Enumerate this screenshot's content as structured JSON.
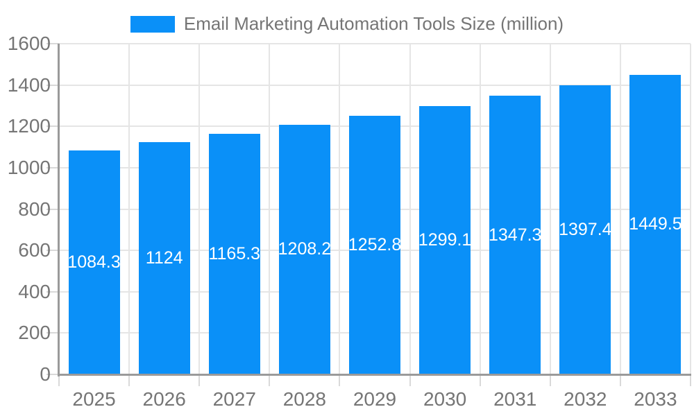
{
  "chart_data": {
    "type": "bar",
    "title": "Email Marketing Automation Tools Size (million)",
    "legend_position": "top",
    "categories": [
      "2025",
      "2026",
      "2027",
      "2028",
      "2029",
      "2030",
      "2031",
      "2032",
      "2033"
    ],
    "values": [
      1084.3,
      1124,
      1165.3,
      1208.2,
      1252.8,
      1299.1,
      1347.3,
      1397.4,
      1449.5
    ],
    "value_labels": [
      "1084.3",
      "1124",
      "1165.3",
      "1208.2",
      "1252.8",
      "1299.1",
      "1347.3",
      "1397.4",
      "1449.5"
    ],
    "xlabel": "",
    "ylabel": "",
    "ylim": [
      0,
      1600
    ],
    "ytick_step": 200,
    "ytick_labels": [
      "0",
      "200",
      "400",
      "600",
      "800",
      "1000",
      "1200",
      "1400",
      "1600"
    ],
    "grid": true,
    "colors": {
      "bar": "#0a90f8",
      "axis_text": "#757575",
      "grid": "#e5e5e5",
      "axis_line": "#9a9a9a",
      "tick": "#d9d9d9",
      "value_label": "#ffffff",
      "background": "#ffffff"
    }
  }
}
